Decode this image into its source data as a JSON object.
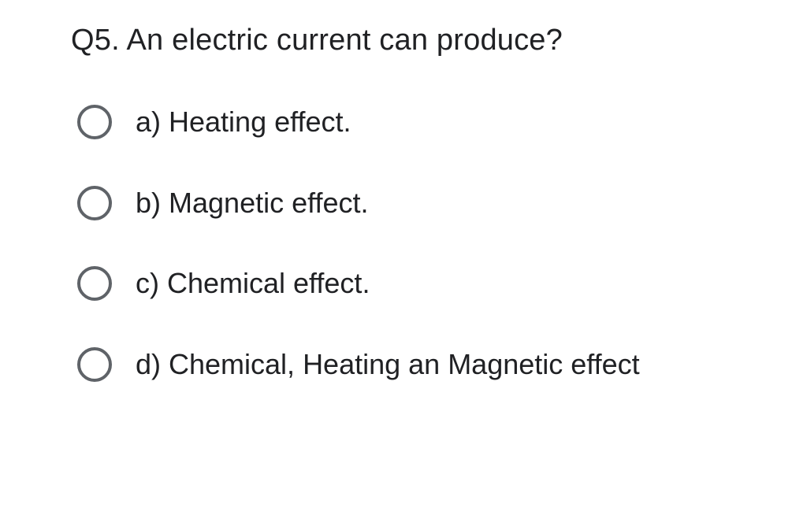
{
  "question": {
    "title": "Q5. An electric current can produce?",
    "title_fontsize": 38,
    "options": [
      {
        "label": "a) Heating effect."
      },
      {
        "label": "b) Magnetic effect."
      },
      {
        "label": "c) Chemical effect."
      },
      {
        "label": "d) Chemical, Heating an Magnetic effect"
      }
    ],
    "option_fontsize": 36
  },
  "colors": {
    "background": "#ffffff",
    "text": "#202124",
    "radio_border": "#5f6368"
  }
}
